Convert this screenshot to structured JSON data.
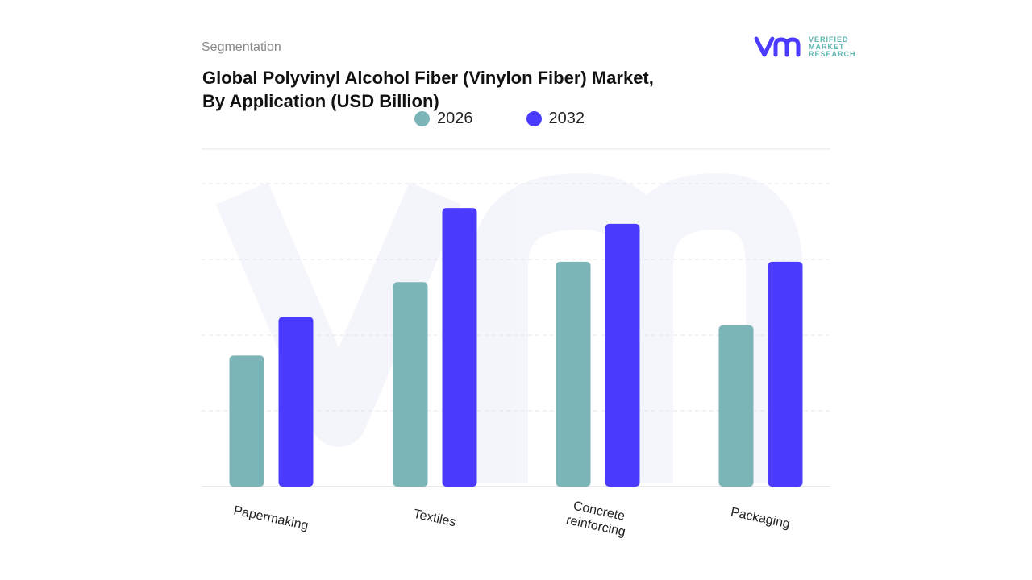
{
  "header": {
    "segment_label": "Segmentation",
    "title_line1": "Global Polyvinyl Alcohol Fiber (Vinylon Fiber) Market,",
    "title_line2": "By Application (USD Billion)"
  },
  "logo": {
    "line1": "VERIFIED",
    "line2": "MARKET",
    "line3": "RESEARCH",
    "brand_color": "#4b3bff"
  },
  "chart_data": {
    "type": "bar",
    "title": "Global Polyvinyl Alcohol Fiber (Vinylon Fiber) Market, By Application (USD Billion)",
    "categories": [
      "Papermaking",
      "Textiles",
      "Concrete reinforcing",
      "Packaging"
    ],
    "series": [
      {
        "name": "2026",
        "color": "#7bb5b8",
        "values": [
          1.73,
          2.7,
          2.97,
          2.13
        ]
      },
      {
        "name": "2032",
        "color": "#4b3bff",
        "values": [
          2.24,
          3.68,
          3.47,
          2.97
        ]
      }
    ],
    "ylim": [
      0,
      4
    ],
    "grid": true,
    "legend": "top-center",
    "y_tick_labels_shown": false
  }
}
